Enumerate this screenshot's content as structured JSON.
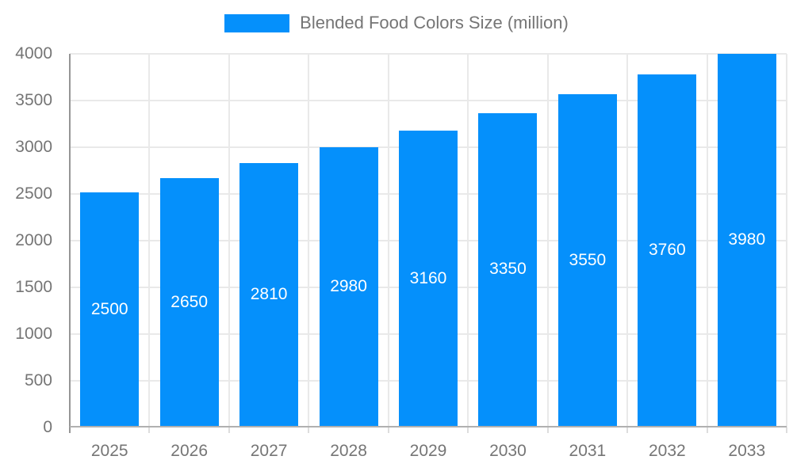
{
  "legend": {
    "label": "Blended Food Colors Size (million)"
  },
  "colors": {
    "bar": "#0590FB",
    "grid": "#E9E9E9",
    "tick": "#DDDDDD",
    "baseline": "#B0B0B0",
    "axis_line": "#969696",
    "axis_text": "#757575",
    "bar_label_text": "#FFFFFF"
  },
  "chart_data": {
    "type": "bar",
    "title": "Blended Food Colors Size (million)",
    "series_name": "Blended Food Colors Size (million)",
    "categories": [
      "2025",
      "2026",
      "2027",
      "2028",
      "2029",
      "2030",
      "2031",
      "2032",
      "2033"
    ],
    "values": [
      2500,
      2650,
      2810,
      2980,
      3160,
      3350,
      3550,
      3760,
      3980
    ],
    "xlabel": "",
    "ylabel": "",
    "ylim": [
      0,
      4000
    ],
    "y_ticks": [
      0,
      500,
      1000,
      1500,
      2000,
      2500,
      3000,
      3500,
      4000
    ],
    "grid": true,
    "legend_position": "top",
    "data_labels": "inside-center"
  }
}
